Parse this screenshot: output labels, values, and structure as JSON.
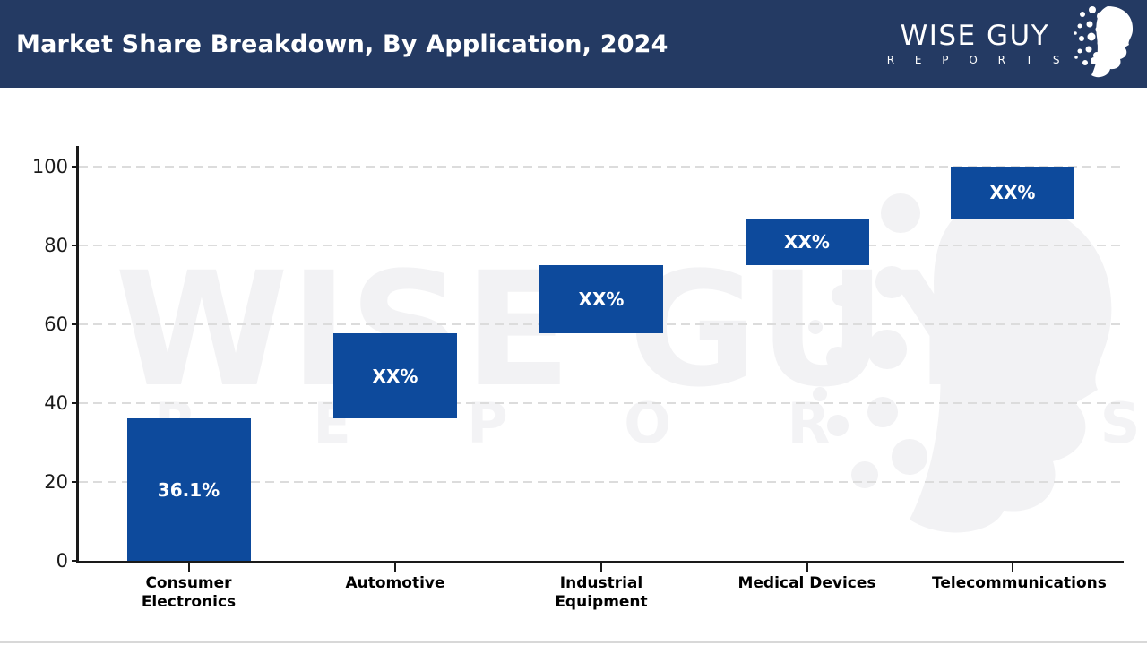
{
  "header": {
    "title": "Market Share Breakdown, By Application, 2024",
    "logo": {
      "name": "Wise Guy Reports",
      "line1": "WISE GUY",
      "line2": "R E P O R T S"
    }
  },
  "watermark": {
    "line1": "WISE GUY",
    "line2": "R E P O R T S"
  },
  "chart_data": {
    "type": "bar",
    "subtype": "waterfall",
    "title": "Market Share Breakdown, By Application, 2024",
    "categories": [
      "Consumer Electronics",
      "Automotive",
      "Industrial Equipment",
      "Medical Devices",
      "Telecommunications"
    ],
    "series": [
      {
        "name": "Market share (%)",
        "segments": [
          {
            "category": "Consumer Electronics",
            "start": 0,
            "end": 36.1,
            "label": "36.1%"
          },
          {
            "category": "Automotive",
            "start": 36.1,
            "end": 57.7,
            "label": "XX%"
          },
          {
            "category": "Industrial Equipment",
            "start": 57.7,
            "end": 75.0,
            "label": "XX%"
          },
          {
            "category": "Medical Devices",
            "start": 75.0,
            "end": 86.6,
            "label": "XX%"
          },
          {
            "category": "Telecommunications",
            "start": 86.6,
            "end": 100.0,
            "label": "XX%"
          }
        ]
      }
    ],
    "xlabel": "",
    "ylabel": "",
    "ylim": [
      0,
      100
    ],
    "yticks": [
      0,
      20,
      40,
      60,
      80,
      100
    ],
    "grid": "horizontal-dashed",
    "legend_position": "none",
    "colors": {
      "bar": "#0d4a9c",
      "bar_label": "#ffffff",
      "header_bg": "#243a63",
      "header_text": "#ffffff",
      "grid": "#dcdcdc",
      "axis": "#1a1a1a",
      "watermark": "#f2f2f4"
    }
  }
}
